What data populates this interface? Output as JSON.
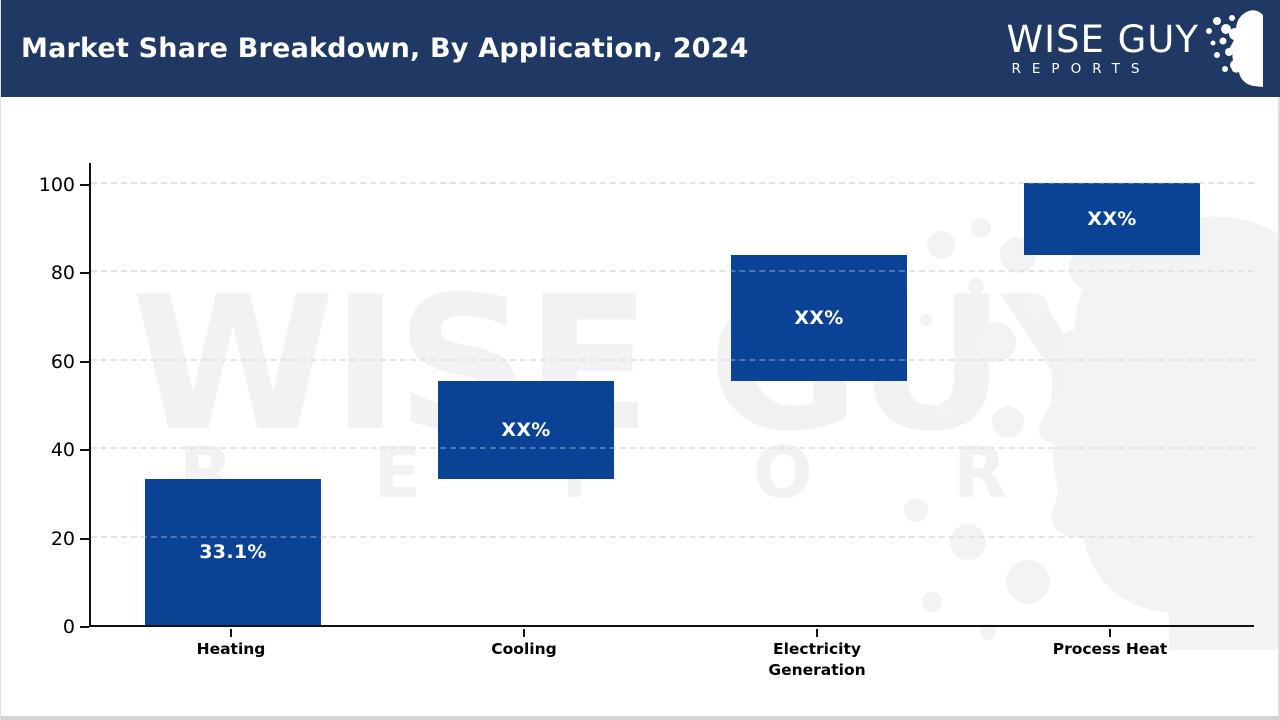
{
  "header": {
    "title": "Market Share Breakdown, By Application, 2024",
    "logo": {
      "name": "WISE GUY",
      "subtitle": "REPORTS"
    }
  },
  "watermark": {
    "line1": "WISE GUY",
    "line2": "REPORTS"
  },
  "colors": {
    "header_bg": "#203864",
    "bar": "#0a4296",
    "grid": "#d9d9d9",
    "axis": "#111111",
    "watermark": "#f2f2f2",
    "bar_label_text": "#ffffff"
  },
  "chart_data": {
    "type": "bar",
    "subtype": "floating-waterfall",
    "title": "Market Share Breakdown, By Application, 2024",
    "categories": [
      "Heating",
      "Cooling",
      "Electricity Generation",
      "Process Heat"
    ],
    "segments": [
      {
        "category": "Heating",
        "start": 0,
        "end": 33.1,
        "value": 33.1,
        "label": "33.1%"
      },
      {
        "category": "Cooling",
        "start": 33.1,
        "end": 55.2,
        "value": 22.1,
        "label": "XX%"
      },
      {
        "category": "Electricity Generation",
        "start": 55.2,
        "end": 83.7,
        "value": 28.5,
        "label": "XX%"
      },
      {
        "category": "Process Heat",
        "start": 83.7,
        "end": 100,
        "value": 16.3,
        "label": "XX%"
      }
    ],
    "xlabel": "",
    "ylabel": "",
    "yticks": [
      0,
      20,
      40,
      60,
      80,
      100
    ],
    "ylim": [
      0,
      105
    ],
    "grid": "horizontal-dashed",
    "legend": false,
    "bar_color": "#0a4296",
    "value_labels_position": "center-of-bar"
  }
}
